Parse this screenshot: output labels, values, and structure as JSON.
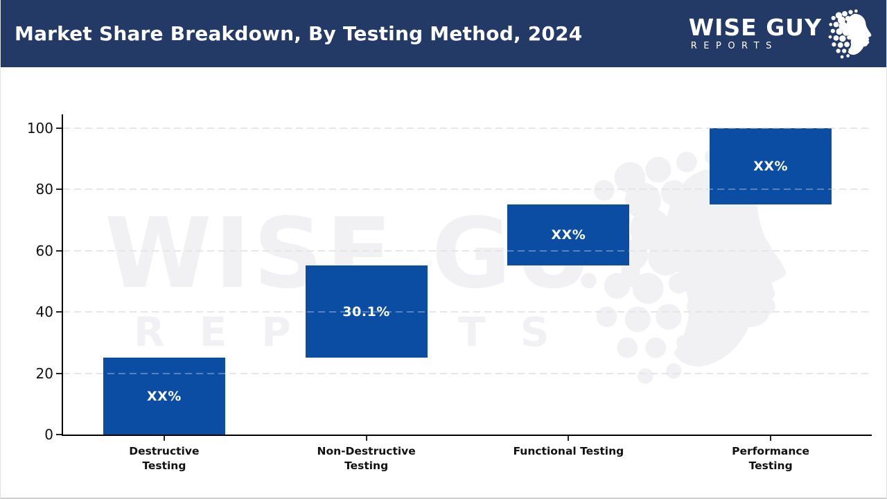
{
  "header": {
    "title": "Market Share Breakdown, By Testing Method, 2024",
    "logo": {
      "wordmark": "WISE GUY",
      "subtext": "REPORTS"
    }
  },
  "watermark": {
    "wordmark": "WISE GUY",
    "subtext": "REPORTS"
  },
  "colors": {
    "header_bg": "#233a66",
    "bar": "#0b4da2",
    "bar_label": "#ffffff",
    "grid": "#d8d8d8",
    "axis": "#000000",
    "watermark": "#f1f1f4"
  },
  "chart_data": {
    "type": "bar",
    "subtype": "waterfall-range",
    "title": "Market Share Breakdown, By Testing Method, 2024",
    "xlabel": "",
    "ylabel": "",
    "ylim": [
      0,
      104.5
    ],
    "y_ticks": [
      0,
      20,
      40,
      60,
      80,
      100
    ],
    "grid": "horizontal-dashed",
    "legend": "none",
    "categories": [
      "Destructive Testing",
      "Non-Destructive Testing",
      "Functional Testing",
      "Performance Testing"
    ],
    "bars": [
      {
        "category": "Destructive Testing",
        "label_lines": [
          "Destructive",
          "Testing"
        ],
        "start": 0,
        "end": 25,
        "value_label": "XX%"
      },
      {
        "category": "Non-Destructive Testing",
        "label_lines": [
          "Non-Destructive",
          "Testing"
        ],
        "start": 25,
        "end": 55.1,
        "value_label": "30.1%"
      },
      {
        "category": "Functional Testing",
        "label_lines": [
          "Functional Testing"
        ],
        "start": 55.1,
        "end": 75,
        "value_label": "XX%"
      },
      {
        "category": "Performance Testing",
        "label_lines": [
          "Performance",
          "Testing"
        ],
        "start": 75,
        "end": 100,
        "value_label": "XX%"
      }
    ]
  }
}
